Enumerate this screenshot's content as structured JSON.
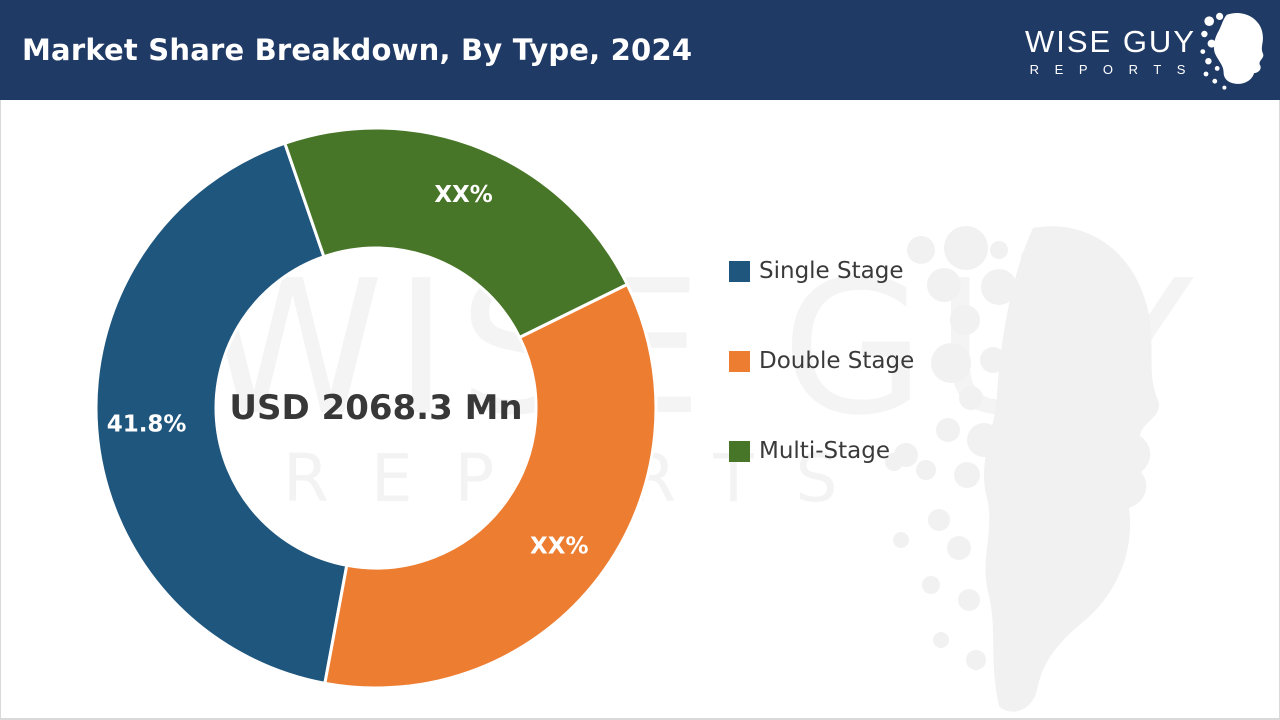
{
  "header": {
    "title": "Market Share Breakdown, By Type, 2024",
    "logo": {
      "line1": "WISE GUY",
      "line2": "R E P O R T S"
    },
    "bg_color": "#203A66"
  },
  "watermark": {
    "line1": "WISE GUY",
    "line2": "REPORTS"
  },
  "chart_data": {
    "type": "pie",
    "subtype": "donut",
    "title": "Market Share Breakdown, By Type, 2024",
    "center_label": "USD 2068.3 Mn",
    "slices": [
      {
        "name": "Single Stage",
        "label": "41.8%",
        "value": 41.8,
        "color": "#1F567D"
      },
      {
        "name": "Double Stage",
        "label": "XX%",
        "value": 35.2,
        "color": "#ED7D31"
      },
      {
        "name": "Multi-Stage",
        "label": "XX%",
        "value": 23.0,
        "color": "#487628"
      }
    ],
    "values_note": "Double Stage and Multi-Stage percentages are masked as XX% in the image; their numeric values are estimated from arc angles",
    "start_angle_deg": 109,
    "direction": "counterclockwise",
    "donut_hole_ratio": 0.57,
    "legend_position": "right",
    "slice_label_color": "#FFFFFF",
    "center_label_color": "#383838"
  }
}
